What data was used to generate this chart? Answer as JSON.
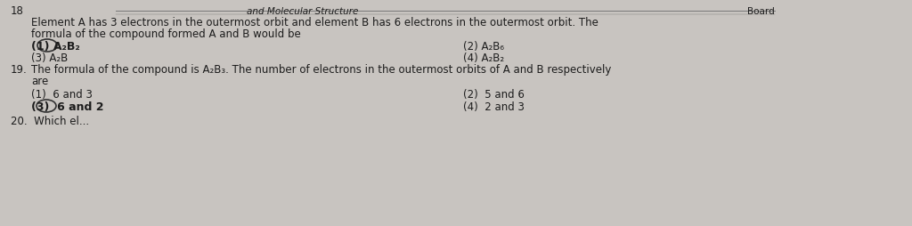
{
  "background_color": "#c8c4c0",
  "header_center": "and Molecular Structure",
  "header_right": "Board",
  "q18_label": "18",
  "q18_text1": "Element A has 3 electrons in the outermost orbit and element B has 6 electrons in the outermost orbit. The",
  "q18_text2": "formula of the compound formed A and B would be",
  "q18_opt1_text": "(1) A₂B₂",
  "q18_opt3_text": "(3) A₂B",
  "q18_opt2_text": "(2) A₂B₆",
  "q18_opt4_text": "(4) A₂B₂",
  "q19_label": "19.",
  "q19_text1": "The formula of the compound is A₂B₃. The number of electrons in the outermost orbits of A and B respectively",
  "q19_text2": "are",
  "q19_opt1_text": "(1)  6 and 3",
  "q19_opt3_text": "(3)  6 and 2",
  "q19_opt2_text": "(2)  5 and 6",
  "q19_opt4_text": "(4)  2 and 3",
  "q20_text": "20.  Which el...",
  "text_color": "#1c1c1c",
  "dark_text": "#111111",
  "line_color": "#777777",
  "font_size": 8.5,
  "header_font_size": 7.5
}
